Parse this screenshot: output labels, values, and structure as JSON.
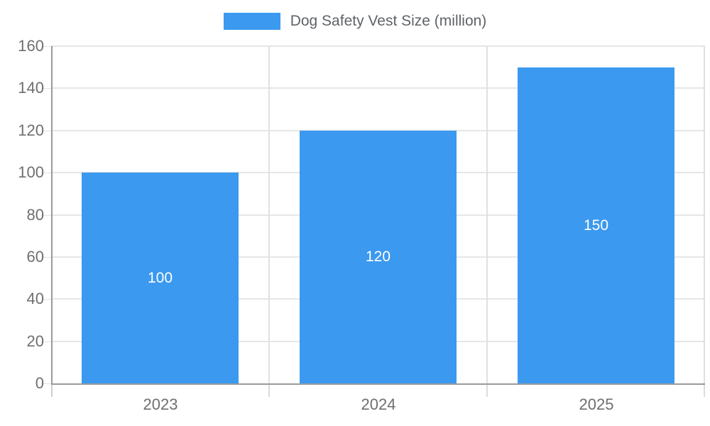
{
  "chart_data": {
    "type": "bar",
    "title": "Dog Safety Vest Size (million)",
    "legend": {
      "position": "top",
      "entries": [
        "Dog Safety Vest Size (million)"
      ]
    },
    "categories": [
      "2023",
      "2024",
      "2025"
    ],
    "values": [
      100,
      120,
      150
    ],
    "data_labels": [
      "100",
      "120",
      "150"
    ],
    "xlabel": "",
    "ylabel": "",
    "ylim": [
      0,
      160
    ],
    "yticks": [
      0,
      20,
      40,
      60,
      80,
      100,
      120,
      140,
      160
    ],
    "ytick_labels": [
      "0",
      "20",
      "40",
      "60",
      "80",
      "100",
      "120",
      "140",
      "160"
    ],
    "grid": true,
    "colors": {
      "bar": "#3b99ef",
      "data_label_text": "#ffffff",
      "axis_text": "#6f6f6f",
      "legend_text": "#5f6368",
      "grid_line": "#e6e6e6",
      "axis_line": "#9a9a9a",
      "background": "#ffffff"
    }
  }
}
